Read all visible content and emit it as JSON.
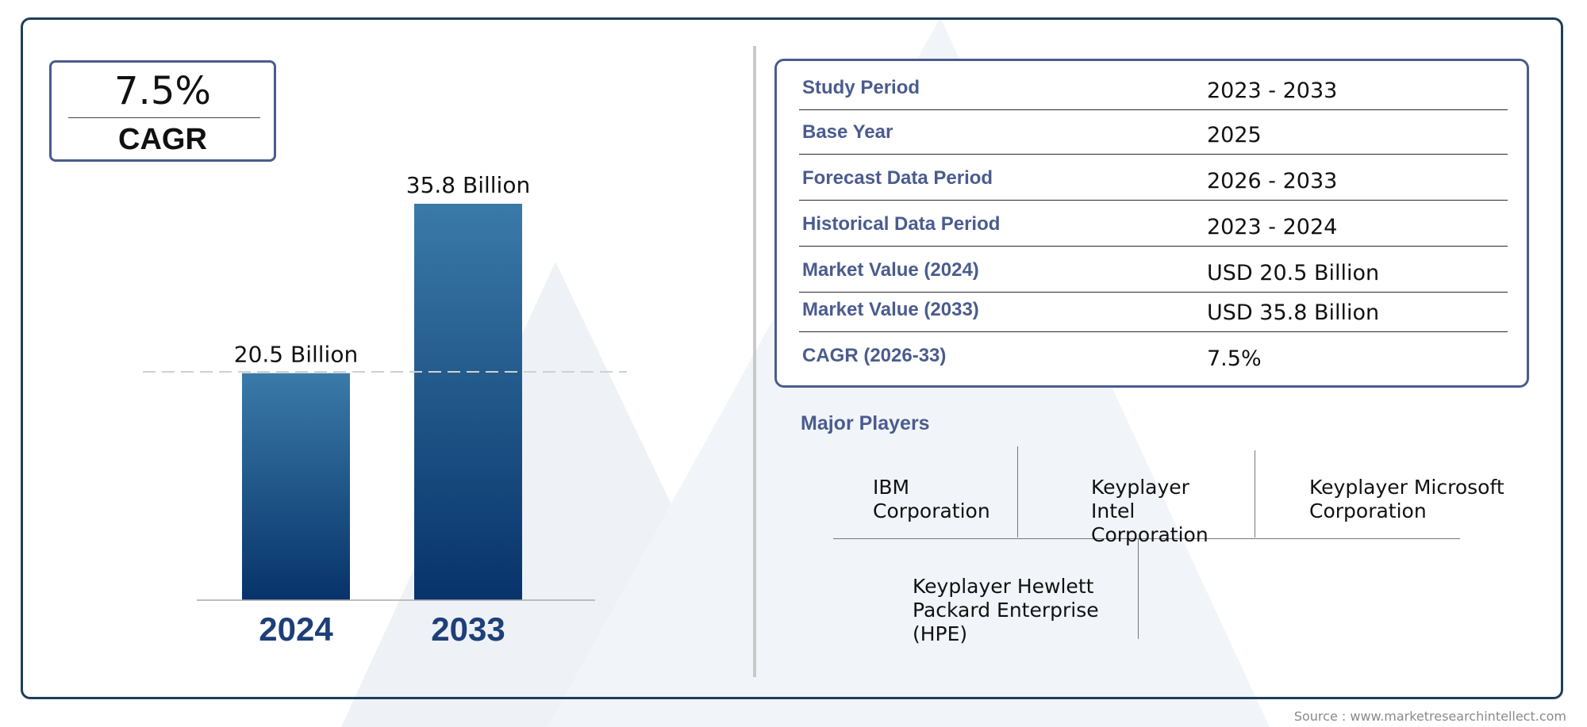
{
  "cagr_box": {
    "value": "7.5%",
    "label": "CAGR"
  },
  "chart_data": {
    "type": "bar",
    "title": "",
    "categories": [
      "2024",
      "2033"
    ],
    "values": [
      20.5,
      35.8
    ],
    "data_labels": [
      "20.5 Billion",
      "35.8 Billion"
    ],
    "xlabel": "",
    "ylabel": "",
    "ylim": [
      0,
      35.8
    ],
    "grid": false,
    "unit": "Billion",
    "bar_color_top": "#3a7aa8",
    "bar_color_bottom": "#07336a",
    "label_color": "#1e3f78"
  },
  "summary_table": {
    "rows": [
      {
        "key": "Study Period",
        "value": "2023 - 2033"
      },
      {
        "key": "Base Year",
        "value": "2025"
      },
      {
        "key": "Forecast Data Period",
        "value": "2026 - 2033"
      },
      {
        "key": "Historical Data Period",
        "value": "2023 - 2024"
      },
      {
        "key": "Market Value (2024)",
        "value": "USD 20.5 Billion"
      },
      {
        "key": "Market Value (2033)",
        "value": "USD 35.8 Billion"
      },
      {
        "key": "CAGR (2026-33)",
        "value": "7.5%"
      }
    ]
  },
  "major_players": {
    "title": "Major Players",
    "players": [
      "IBM Corporation",
      "Keyplayer Intel Corporation",
      "Keyplayer Microsoft Corporation",
      "Keyplayer Hewlett Packard Enterprise (HPE)"
    ]
  },
  "source": "Source : www.marketresearchintellect.com",
  "colors": {
    "accent": "#4a5c8e",
    "frame": "#1e3f5a",
    "watermark": "#eef1f6"
  }
}
